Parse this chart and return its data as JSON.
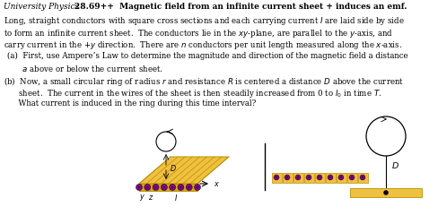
{
  "bg_color": "#ffffff",
  "sheet_fill": "#f0c040",
  "sheet_edge": "#b89000",
  "sheet_dark": "#d4a820",
  "dot_fill": "#880088",
  "fs_title": 6.5,
  "fs_body": 6.2,
  "fs_label": 5.8,
  "text_blocks": {
    "title_italic": "University Physics",
    "title_bold": "28.69++  Magnetic field from an infinite current sheet + induces an emf.",
    "line1": "Long, straight conductors with square cross sections and each carrying current $I$ are laid side by side",
    "line2": "to form an infinite current sheet.  The conductors lie in the $xy$-plane, are parallel to the $y$-axis, and",
    "line3": "carry current in the $+y$ direction.  There are $n$ conductors per unit length measured along the $x$-axis.",
    "parta1": "(a)  First, use Ampere’s Law to determine the magnitude and direction of the magnetic field a distance",
    "parta2": "      $a$ above or below the current sheet.",
    "partb1": "(b)  Now, a small circular ring of radius $r$ and resistance $R$ is centered a distance $D$ above the current",
    "partb2": "      sheet.  The current in the wires of the sheet is then steadily increased from 0 to $I_0$ in time $T$.",
    "partb3": "      What current is induced in the ring during this time interval?"
  }
}
